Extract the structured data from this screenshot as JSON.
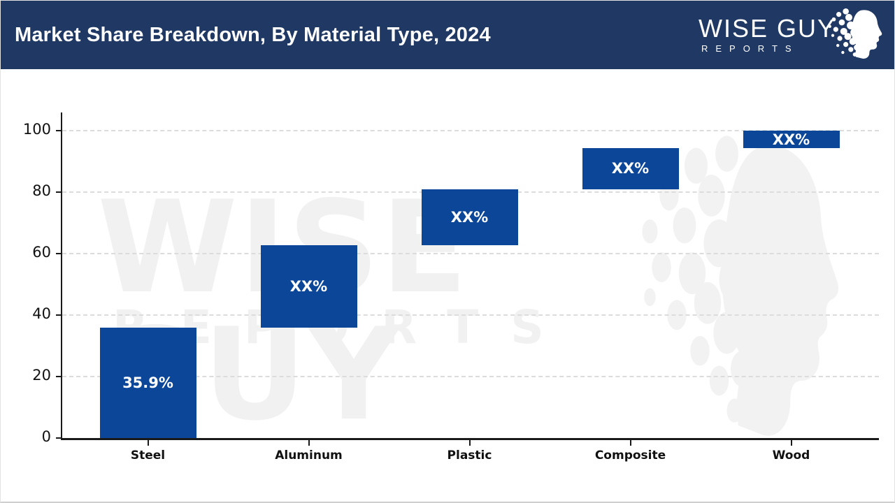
{
  "header": {
    "title": "Market Share Breakdown, By Material Type, 2024",
    "background_color": "#203864",
    "logo": {
      "line1": "WISE GUY",
      "line2": "REPORTS"
    }
  },
  "watermark": {
    "line1": "WISE GUY",
    "line2": "REPORTS"
  },
  "chart_data": {
    "type": "bar",
    "subtype": "waterfall",
    "title": "Market Share Breakdown, By Material Type, 2024",
    "categories": [
      "Steel",
      "Aluminum",
      "Plastic",
      "Composite",
      "Wood"
    ],
    "segments": [
      {
        "category": "Steel",
        "start": 0,
        "end": 35.9,
        "label": "35.9%"
      },
      {
        "category": "Aluminum",
        "start": 35.9,
        "end": 62.7,
        "label": "XX%"
      },
      {
        "category": "Plastic",
        "start": 62.7,
        "end": 81.0,
        "label": "XX%"
      },
      {
        "category": "Composite",
        "start": 81.0,
        "end": 94.3,
        "label": "XX%"
      },
      {
        "category": "Wood",
        "start": 94.3,
        "end": 100.0,
        "label": "XX%"
      }
    ],
    "yticks": [
      0,
      20,
      40,
      60,
      80,
      100
    ],
    "ylim": [
      0,
      106
    ],
    "xlabel": "",
    "ylabel": "",
    "legend": "none",
    "grid": "horizontal-dashed",
    "bar_color": "#0c4699",
    "bar_label_color": "#ffffff",
    "axis_color": "#1a1a1a",
    "grid_color": "#dcdcdc"
  }
}
